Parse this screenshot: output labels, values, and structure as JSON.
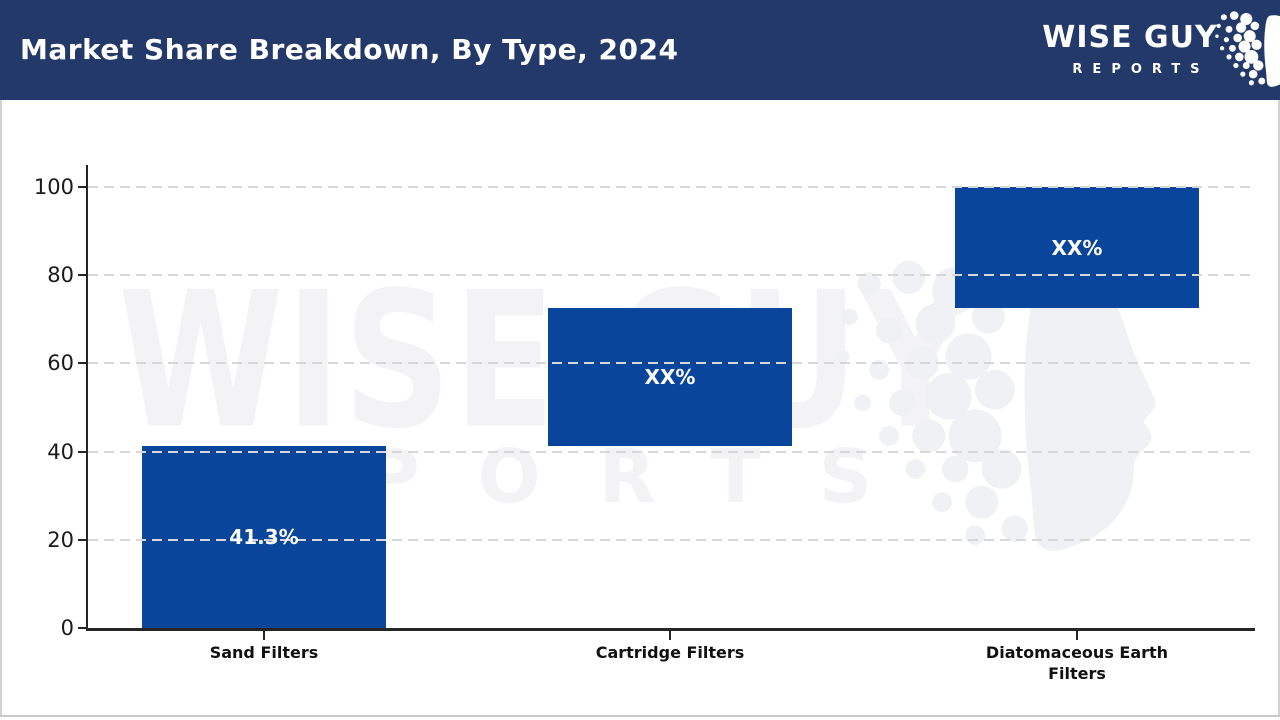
{
  "header": {
    "title": "Market Share Breakdown, By Type, 2024",
    "logo_line1": "WISE GUY",
    "logo_line2": "REPORTS"
  },
  "watermark": {
    "line1": "WISE GUY",
    "line2": "REPORTS"
  },
  "colors": {
    "header_bg": "#22396a",
    "bar": "#0a459c",
    "grid": "#d7d7d7",
    "axis": "#262626",
    "watermark": "#f3f3f6",
    "bar_label": "#ffffff"
  },
  "chart_data": {
    "type": "bar",
    "subtype": "waterfall",
    "title": "Market Share Breakdown, By Type, 2024",
    "categories": [
      "Sand Filters",
      "Cartridge Filters",
      "Diatomaceous Earth Filters"
    ],
    "category_display": [
      [
        "Sand Filters"
      ],
      [
        "Cartridge Filters"
      ],
      [
        "Diatomaceous Earth",
        "Filters"
      ]
    ],
    "segments": [
      {
        "category": "Sand Filters",
        "label": "41.3%",
        "start": 0,
        "end": 41.3
      },
      {
        "category": "Cartridge Filters",
        "label": "XX%",
        "start": 41.3,
        "end": 72.5
      },
      {
        "category": "Diatomaceous Earth Filters",
        "label": "XX%",
        "start": 72.5,
        "end": 100
      }
    ],
    "yticks": [
      0,
      20,
      40,
      60,
      80,
      100
    ],
    "ylim": [
      0,
      105
    ],
    "xlabel": "",
    "ylabel": "",
    "grid": "dashed-horizontal",
    "legend": "none",
    "bar_color": "#0a459c",
    "label_color": "#ffffff"
  }
}
